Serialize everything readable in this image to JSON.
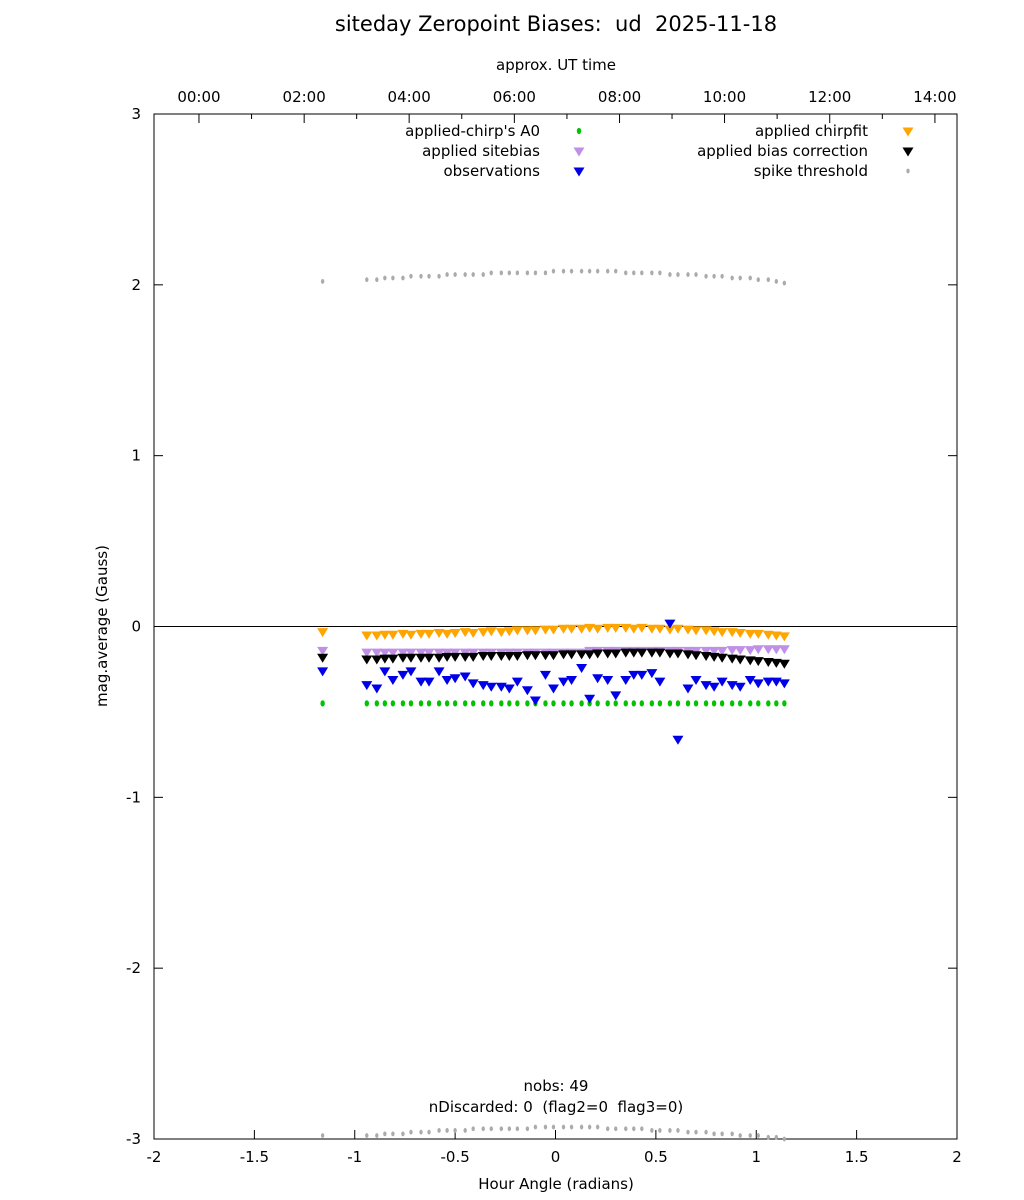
{
  "chart_data": {
    "type": "scatter",
    "title": "siteday Zeropoint Biases:  ud  2025-11-18",
    "x2label": "approx. UT time",
    "xlabel": "Hour Angle (radians)",
    "ylabel": "mag.average (Gauss)",
    "xlim": [
      -2,
      2
    ],
    "ylim": [
      -3,
      3
    ],
    "grid": false,
    "zero_line": true,
    "legend_position": "top-inside-two-columns",
    "annotations": {
      "nobs": "nobs: 49",
      "ndiscarded": "nDiscarded: 0  (flag2=0  flag3=0)"
    },
    "x_ticks": {
      "values": [
        -2,
        -1.5,
        -1,
        -0.5,
        0,
        0.5,
        1,
        1.5,
        2
      ],
      "labels": [
        "-2",
        "-1.5",
        "-1",
        "-0.5",
        "0",
        "0.5",
        "1",
        "1.5",
        "2"
      ]
    },
    "y_ticks": {
      "values": [
        3,
        2,
        1,
        0,
        -1,
        -2,
        -3
      ],
      "labels": [
        "3",
        "2",
        "1",
        "0",
        "-1",
        "-2",
        "-3"
      ]
    },
    "x2_ticks": {
      "values": [
        -1.776,
        -1.252,
        -0.729,
        -0.205,
        0.319,
        0.842,
        1.366,
        1.89
      ],
      "labels": [
        "00:00",
        "02:00",
        "04:00",
        "06:00",
        "08:00",
        "10:00",
        "12:00",
        "14:00"
      ]
    },
    "x": [
      -1.16,
      -0.94,
      -0.89,
      -0.85,
      -0.81,
      -0.76,
      -0.72,
      -0.67,
      -0.63,
      -0.58,
      -0.54,
      -0.5,
      -0.45,
      -0.41,
      -0.36,
      -0.32,
      -0.27,
      -0.23,
      -0.19,
      -0.14,
      -0.1,
      -0.05,
      -0.01,
      0.04,
      0.08,
      0.13,
      0.17,
      0.21,
      0.26,
      0.3,
      0.35,
      0.39,
      0.43,
      0.48,
      0.52,
      0.57,
      0.61,
      0.66,
      0.7,
      0.75,
      0.79,
      0.83,
      0.88,
      0.92,
      0.97,
      1.01,
      1.06,
      1.1,
      1.14
    ],
    "series": [
      {
        "name": "applied-chirp's A0",
        "marker": "dot-small",
        "color": "#00C400",
        "y": [
          -0.45,
          -0.45,
          -0.45,
          -0.45,
          -0.45,
          -0.45,
          -0.45,
          -0.45,
          -0.45,
          -0.45,
          -0.45,
          -0.45,
          -0.45,
          -0.45,
          -0.45,
          -0.45,
          -0.45,
          -0.45,
          -0.45,
          -0.45,
          -0.45,
          -0.45,
          -0.45,
          -0.45,
          -0.45,
          -0.45,
          -0.45,
          -0.45,
          -0.45,
          -0.45,
          -0.45,
          -0.45,
          -0.45,
          -0.45,
          -0.45,
          -0.45,
          -0.45,
          -0.45,
          -0.45,
          -0.45,
          -0.45,
          -0.45,
          -0.45,
          -0.45,
          -0.45,
          -0.45,
          -0.45,
          -0.45,
          -0.45
        ]
      },
      {
        "name": "applied chirpfit",
        "marker": "triangle-down",
        "color": "#FFA500",
        "y": [
          -0.03,
          -0.05,
          -0.05,
          -0.045,
          -0.045,
          -0.04,
          -0.045,
          -0.04,
          -0.04,
          -0.035,
          -0.04,
          -0.035,
          -0.03,
          -0.035,
          -0.03,
          -0.025,
          -0.03,
          -0.025,
          -0.02,
          -0.02,
          -0.02,
          -0.015,
          -0.015,
          -0.01,
          -0.01,
          -0.01,
          -0.005,
          -0.01,
          -0.005,
          -0.005,
          -0.005,
          -0.01,
          -0.005,
          -0.01,
          -0.01,
          -0.015,
          -0.01,
          -0.015,
          -0.02,
          -0.02,
          -0.025,
          -0.03,
          -0.03,
          -0.035,
          -0.04,
          -0.04,
          -0.045,
          -0.05,
          -0.055
        ]
      },
      {
        "name": "applied sitebias",
        "marker": "triangle-down",
        "color": "#C090E8",
        "y": [
          -0.14,
          -0.15,
          -0.15,
          -0.15,
          -0.15,
          -0.15,
          -0.15,
          -0.15,
          -0.15,
          -0.15,
          -0.15,
          -0.15,
          -0.15,
          -0.15,
          -0.15,
          -0.15,
          -0.15,
          -0.15,
          -0.15,
          -0.15,
          -0.15,
          -0.15,
          -0.15,
          -0.15,
          -0.15,
          -0.15,
          -0.14,
          -0.14,
          -0.14,
          -0.14,
          -0.14,
          -0.14,
          -0.14,
          -0.14,
          -0.14,
          -0.14,
          -0.14,
          -0.14,
          -0.14,
          -0.14,
          -0.14,
          -0.14,
          -0.135,
          -0.135,
          -0.135,
          -0.13,
          -0.13,
          -0.13,
          -0.13
        ]
      },
      {
        "name": "applied bias correction",
        "marker": "triangle-down",
        "color": "#000000",
        "y": [
          -0.18,
          -0.19,
          -0.19,
          -0.185,
          -0.185,
          -0.18,
          -0.18,
          -0.18,
          -0.18,
          -0.18,
          -0.175,
          -0.175,
          -0.175,
          -0.175,
          -0.17,
          -0.17,
          -0.17,
          -0.17,
          -0.17,
          -0.165,
          -0.165,
          -0.165,
          -0.165,
          -0.16,
          -0.16,
          -0.16,
          -0.16,
          -0.155,
          -0.155,
          -0.155,
          -0.15,
          -0.15,
          -0.15,
          -0.15,
          -0.15,
          -0.155,
          -0.155,
          -0.16,
          -0.165,
          -0.17,
          -0.175,
          -0.18,
          -0.185,
          -0.19,
          -0.195,
          -0.2,
          -0.205,
          -0.21,
          -0.215
        ]
      },
      {
        "name": "observations",
        "marker": "triangle-down",
        "color": "#0000E8",
        "y": [
          -0.26,
          -0.34,
          -0.36,
          -0.26,
          -0.31,
          -0.28,
          -0.26,
          -0.32,
          -0.32,
          -0.26,
          -0.31,
          -0.3,
          -0.29,
          -0.33,
          -0.34,
          -0.35,
          -0.35,
          -0.36,
          -0.32,
          -0.37,
          -0.43,
          -0.28,
          -0.36,
          -0.32,
          -0.31,
          -0.24,
          -0.42,
          -0.3,
          -0.31,
          -0.4,
          -0.31,
          -0.28,
          -0.28,
          -0.27,
          -0.32,
          0.02,
          -0.66,
          -0.36,
          -0.31,
          -0.34,
          -0.35,
          -0.32,
          -0.34,
          -0.35,
          -0.31,
          -0.33,
          -0.32,
          -0.32,
          -0.33
        ]
      },
      {
        "name": "spike threshold",
        "marker": "dot-tiny",
        "color": "#ABABAB",
        "y": [
          2.02,
          2.03,
          2.03,
          2.04,
          2.04,
          2.04,
          2.05,
          2.05,
          2.05,
          2.05,
          2.06,
          2.06,
          2.06,
          2.06,
          2.06,
          2.07,
          2.07,
          2.07,
          2.07,
          2.07,
          2.07,
          2.07,
          2.08,
          2.08,
          2.08,
          2.08,
          2.08,
          2.08,
          2.08,
          2.08,
          2.07,
          2.07,
          2.07,
          2.07,
          2.07,
          2.06,
          2.06,
          2.06,
          2.06,
          2.05,
          2.05,
          2.05,
          2.04,
          2.04,
          2.04,
          2.03,
          2.03,
          2.02,
          2.01
        ],
        "y2": [
          -2.98,
          -2.98,
          -2.98,
          -2.97,
          -2.97,
          -2.97,
          -2.96,
          -2.96,
          -2.96,
          -2.95,
          -2.95,
          -2.95,
          -2.95,
          -2.94,
          -2.94,
          -2.94,
          -2.94,
          -2.94,
          -2.94,
          -2.94,
          -2.93,
          -2.93,
          -2.93,
          -2.93,
          -2.93,
          -2.93,
          -2.93,
          -2.93,
          -2.94,
          -2.94,
          -2.94,
          -2.94,
          -2.94,
          -2.95,
          -2.95,
          -2.95,
          -2.95,
          -2.96,
          -2.96,
          -2.96,
          -2.97,
          -2.97,
          -2.97,
          -2.98,
          -2.98,
          -2.98,
          -2.99,
          -2.99,
          -3.0
        ]
      }
    ]
  }
}
